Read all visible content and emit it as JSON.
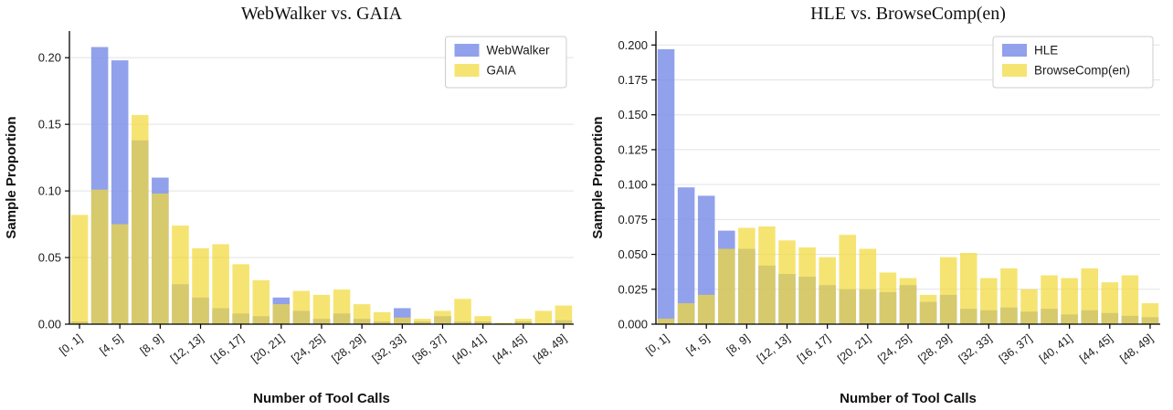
{
  "figure": {
    "background": "#ffffff",
    "grid_color": "#e3e3e3",
    "spine_color": "#000000"
  },
  "chart_data": [
    {
      "type": "bar",
      "style": "overlapping-histogram",
      "title": "WebWalker vs. GAIA",
      "xlabel": "Number of Tool Calls",
      "ylabel": "Sample Proportion",
      "ylim": [
        0,
        0.22
      ],
      "yticks": [
        0.0,
        0.05,
        0.1,
        0.15,
        0.2
      ],
      "ytick_labels": [
        "0.00",
        "0.05",
        "0.10",
        "0.15",
        "0.20"
      ],
      "grid": true,
      "legend_position": "upper right",
      "xtick_every": 2,
      "categories": [
        "[0, 1]",
        "[2, 3]",
        "[4, 5]",
        "[6, 7]",
        "[8, 9]",
        "[10, 11]",
        "[12, 13]",
        "[14, 15]",
        "[16, 17]",
        "[18, 19]",
        "[20, 21]",
        "[22, 23]",
        "[24, 25]",
        "[26, 27]",
        "[28, 29]",
        "[30, 31]",
        "[32, 33]",
        "[34, 35]",
        "[36, 37]",
        "[38, 39]",
        "[40, 41]",
        "[42, 43]",
        "[44, 45]",
        "[46, 47]",
        "[48, 49]"
      ],
      "series": [
        {
          "name": "WebWalker",
          "color": "#7e90e8",
          "opacity": 0.85,
          "values": [
            0.002,
            0.208,
            0.198,
            0.138,
            0.11,
            0.03,
            0.02,
            0.012,
            0.008,
            0.006,
            0.02,
            0.01,
            0.004,
            0.008,
            0.004,
            0.002,
            0.012,
            0.002,
            0.006,
            0.002,
            0.002,
            0.0,
            0.002,
            0.0,
            0.003
          ]
        },
        {
          "name": "GAIA",
          "color": "#f3da3b",
          "opacity": 0.72,
          "values": [
            0.082,
            0.101,
            0.075,
            0.157,
            0.098,
            0.074,
            0.057,
            0.06,
            0.045,
            0.033,
            0.015,
            0.025,
            0.022,
            0.026,
            0.015,
            0.009,
            0.005,
            0.004,
            0.01,
            0.019,
            0.006,
            0.001,
            0.004,
            0.01,
            0.014
          ]
        }
      ]
    },
    {
      "type": "bar",
      "style": "overlapping-histogram",
      "title": "HLE vs. BrowseComp(en)",
      "xlabel": "Number of Tool Calls",
      "ylabel": "Sample Proportion",
      "ylim": [
        0,
        0.21
      ],
      "yticks": [
        0.0,
        0.025,
        0.05,
        0.075,
        0.1,
        0.125,
        0.15,
        0.175,
        0.2
      ],
      "ytick_labels": [
        "0.000",
        "0.025",
        "0.050",
        "0.075",
        "0.100",
        "0.125",
        "0.150",
        "0.175",
        "0.200"
      ],
      "grid": true,
      "legend_position": "upper right",
      "xtick_every": 2,
      "categories": [
        "[0, 1]",
        "[2, 3]",
        "[4, 5]",
        "[6, 7]",
        "[8, 9]",
        "[10, 11]",
        "[12, 13]",
        "[14, 15]",
        "[16, 17]",
        "[18, 19]",
        "[20, 21]",
        "[22, 23]",
        "[24, 25]",
        "[26, 27]",
        "[28, 29]",
        "[30, 31]",
        "[32, 33]",
        "[34, 35]",
        "[36, 37]",
        "[38, 39]",
        "[40, 41]",
        "[42, 43]",
        "[44, 45]",
        "[46, 47]",
        "[48, 49]"
      ],
      "series": [
        {
          "name": "HLE",
          "color": "#7e90e8",
          "opacity": 0.85,
          "values": [
            0.197,
            0.098,
            0.092,
            0.067,
            0.054,
            0.042,
            0.036,
            0.034,
            0.028,
            0.025,
            0.025,
            0.023,
            0.028,
            0.016,
            0.021,
            0.011,
            0.01,
            0.012,
            0.009,
            0.011,
            0.007,
            0.01,
            0.008,
            0.006,
            0.005
          ]
        },
        {
          "name": "BrowseComp(en)",
          "color": "#f3da3b",
          "opacity": 0.72,
          "values": [
            0.004,
            0.015,
            0.021,
            0.054,
            0.069,
            0.07,
            0.06,
            0.055,
            0.048,
            0.064,
            0.054,
            0.037,
            0.033,
            0.021,
            0.048,
            0.051,
            0.033,
            0.04,
            0.025,
            0.035,
            0.033,
            0.04,
            0.03,
            0.035,
            0.015
          ]
        }
      ]
    }
  ]
}
